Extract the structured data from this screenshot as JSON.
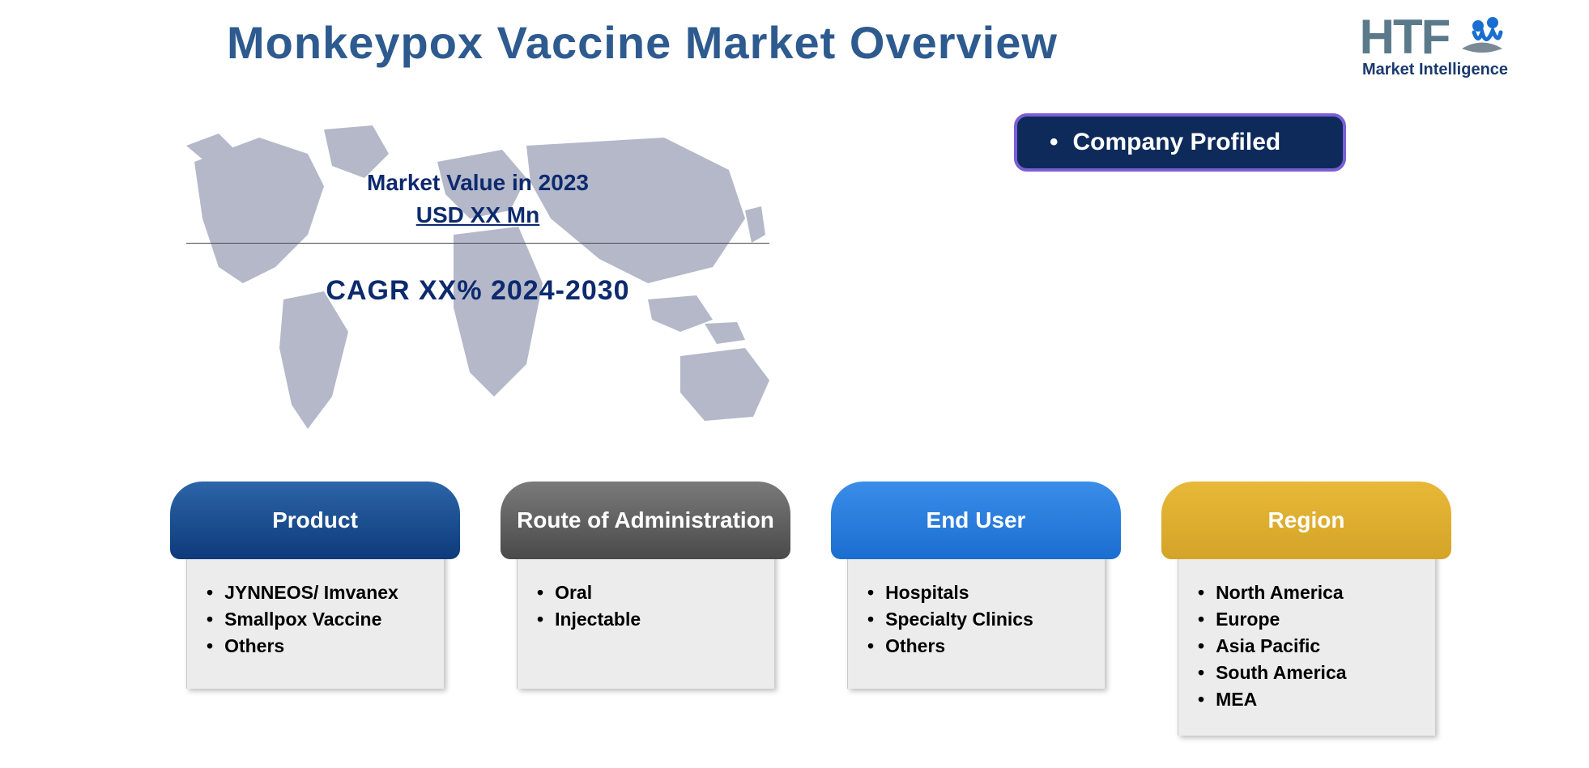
{
  "title": "Monkeypox Vaccine Market Overview",
  "logo": {
    "text": "HTF",
    "subtitle": "Market Intelligence",
    "icon_people_color": "#1a6ed0",
    "icon_swoosh_color": "#7a8a95"
  },
  "colors": {
    "title": "#2d5a8f",
    "map_fill": "#a8acc0",
    "map_text": "#0d2a6e",
    "company_bg": "#0d2a5a",
    "company_border": "#7a5fd4",
    "body_bg": "#ececec"
  },
  "company_profiled": {
    "label": "Company Profiled"
  },
  "market": {
    "value_label": "Market Value in 2023",
    "value": "USD XX Mn",
    "cagr": "CAGR XX% 2024-2030"
  },
  "segments": [
    {
      "key": "product",
      "title": "Product",
      "header_class": "hdr-product",
      "items": [
        "JYNNEOS/ Imvanex",
        "Smallpox Vaccine",
        "Others"
      ]
    },
    {
      "key": "route",
      "title": "Route of Administration",
      "header_class": "hdr-route",
      "items": [
        "Oral",
        "Injectable"
      ]
    },
    {
      "key": "enduser",
      "title": "End User",
      "header_class": "hdr-enduser",
      "items": [
        "Hospitals",
        "Specialty Clinics",
        "Others"
      ]
    },
    {
      "key": "region",
      "title": "Region",
      "header_class": "hdr-region",
      "items": [
        "North America",
        "Europe",
        "Asia Pacific",
        "South America",
        "MEA"
      ]
    }
  ],
  "styling": {
    "title_fontsize": 56,
    "header_fontsize": 28,
    "item_fontsize": 23,
    "card_header_radius": "40px 40px 12px 12px",
    "card_body_shadow": "3px 3px 6px rgba(0,0,0,0.25)"
  }
}
